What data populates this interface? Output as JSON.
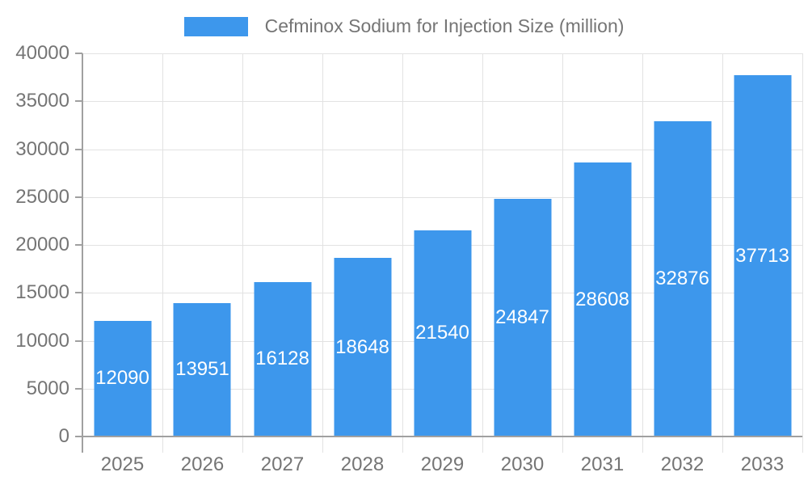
{
  "chart_data": {
    "type": "bar",
    "title": "",
    "legend_label": "Cefminox Sodium for Injection Size (million)",
    "legend_position": "top",
    "categories": [
      "2025",
      "2026",
      "2027",
      "2028",
      "2029",
      "2030",
      "2031",
      "2032",
      "2033"
    ],
    "values": [
      12090,
      13951,
      16128,
      18648,
      21540,
      24847,
      28608,
      32876,
      37713
    ],
    "xlabel": "",
    "ylabel": "",
    "ylim": [
      0,
      40000
    ],
    "ytick_step": 5000,
    "yticks": [
      "0",
      "5000",
      "10000",
      "15000",
      "20000",
      "25000",
      "30000",
      "35000",
      "40000"
    ],
    "grid": true,
    "value_labels": "inside-bar-centered"
  },
  "colors": {
    "bar_color": "#3D97EC",
    "grid_color": "#E2E2E2",
    "axis_color": "#A0A0A0",
    "text_color": "#757575",
    "value_label_color": "#FFFFFF",
    "background": "#FFFFFF"
  }
}
